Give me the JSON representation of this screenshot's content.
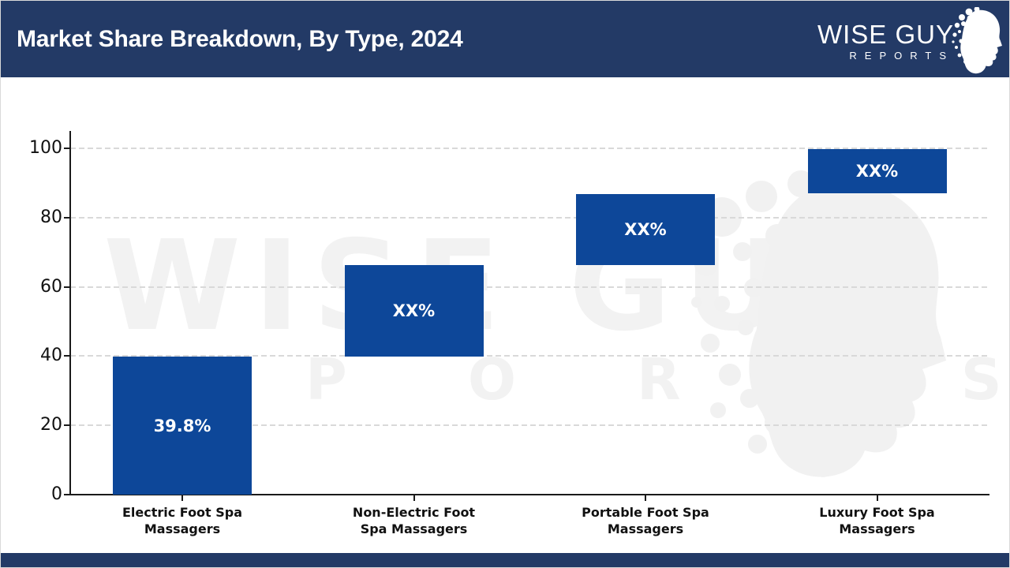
{
  "header": {
    "title": "Market Share Breakdown, By Type, 2024"
  },
  "logo": {
    "line1": "WISE GUY",
    "line2": "REPORTS"
  },
  "watermark": {
    "line1": "WISE GUY",
    "line2": "P O R T S"
  },
  "colors": {
    "navy": "#233a66",
    "bar_blue": "#0d4799",
    "axis": "#1a1a1a",
    "gridline": "#d9d9d9",
    "watermark": "#f2f2f2",
    "bar_label_text": "#ffffff"
  },
  "chart_data": {
    "type": "bar",
    "subtype": "floating-waterfall-percentage",
    "title": "Market Share Breakdown, By Type, 2024",
    "xlabel": "",
    "ylabel": "",
    "ylim": [
      0,
      100
    ],
    "yticks": [
      0,
      20,
      40,
      60,
      80,
      100
    ],
    "grid": "horizontal-dashed",
    "legend": "none",
    "bar_color": "#0d4799",
    "segments": [
      {
        "category_lines": [
          "Electric Foot Spa",
          "Massagers"
        ],
        "start": 0,
        "end": 39.8,
        "label": "39.8%"
      },
      {
        "category_lines": [
          "Non-Electric Foot",
          "Spa Massagers"
        ],
        "start": 39.8,
        "end": 66.2,
        "label": "XX%"
      },
      {
        "category_lines": [
          "Portable Foot Spa",
          "Massagers"
        ],
        "start": 66.2,
        "end": 86.7,
        "label": "XX%"
      },
      {
        "category_lines": [
          "Luxury Foot Spa",
          "Massagers"
        ],
        "start": 87.0,
        "end": 99.8,
        "label": "XX%"
      }
    ]
  }
}
